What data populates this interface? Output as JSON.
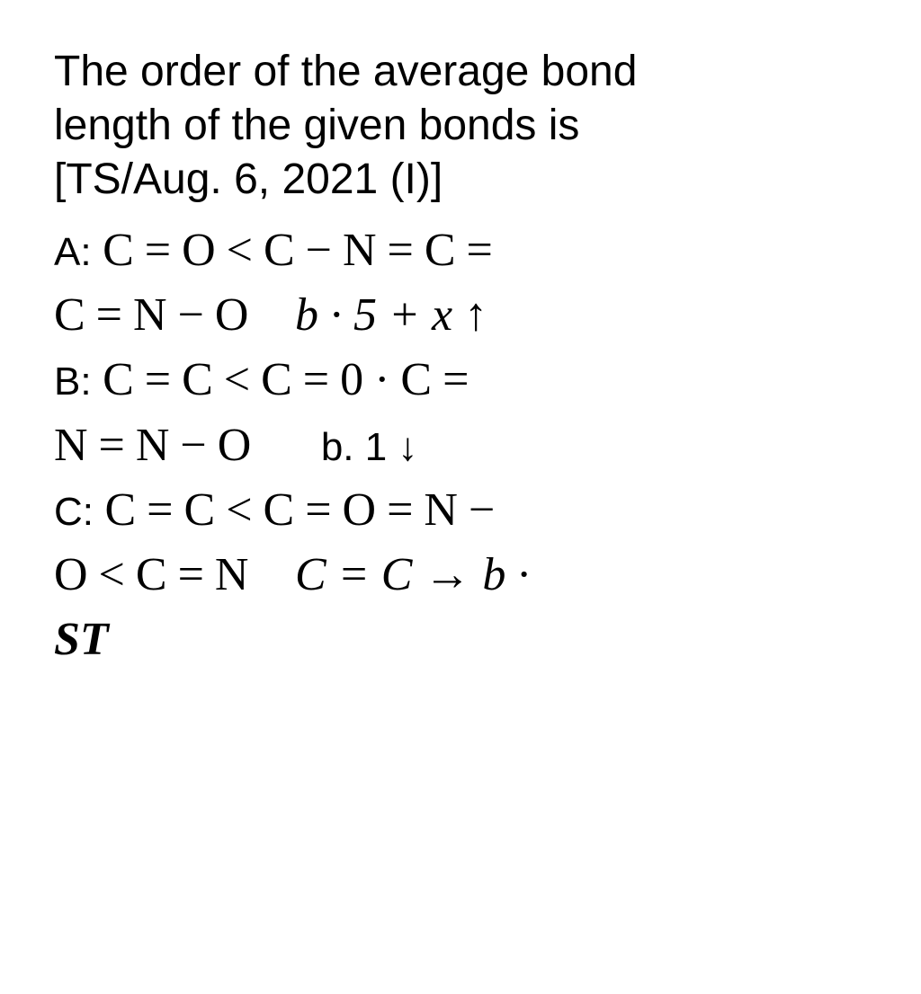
{
  "question": {
    "line1": "The order of the average bond",
    "line2": "length of the given bonds is",
    "line3": "[TS/Aug. 6, 2021 (I)]"
  },
  "options": {
    "a": {
      "label": "A:",
      "line1": " C = O < C − N = C =",
      "line2_left": "C = N − O",
      "line2_right": "b · 5 + x ↑"
    },
    "b": {
      "label": "B:",
      "line1": " C = C < C = 0 · C =",
      "line2_left": "N = N − O",
      "line2_right": "b. 1 ↓"
    },
    "c": {
      "label": "C:",
      "line1": " C = C < C = O = N −",
      "line2_left": "O < C = N",
      "line2_right": "C = C → b ·",
      "line3": "ST"
    }
  },
  "style": {
    "background_color": "#ffffff",
    "text_color": "#000000",
    "question_font_family": "Arial, Helvetica, sans-serif",
    "options_font_family": "Times New Roman, Georgia, serif",
    "question_fontsize": 48,
    "options_fontsize": 52,
    "option_label_fontsize": 44
  }
}
